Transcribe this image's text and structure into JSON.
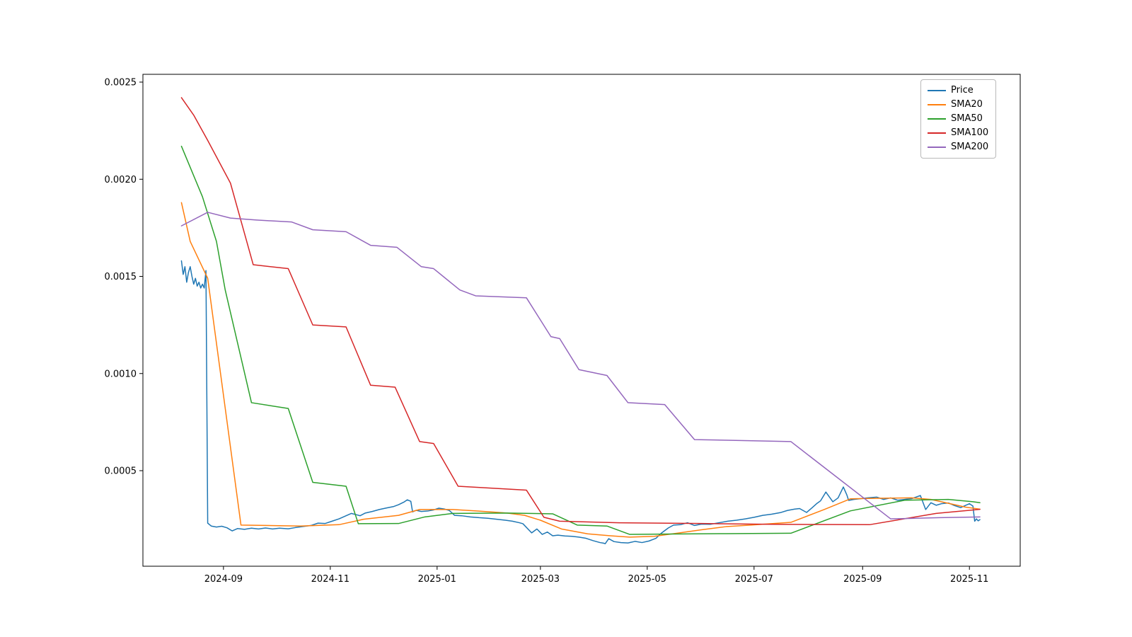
{
  "figure": {
    "background": "#ffffff",
    "spine_color": "#000000"
  },
  "chart_data": {
    "type": "line",
    "title": "",
    "xlabel": "",
    "ylabel": "",
    "grid": false,
    "legend_position": "upper right",
    "x_axis": {
      "kind": "date",
      "xlim": [
        "2024-07-17",
        "2025-11-30"
      ],
      "ticks": [
        {
          "date": "2024-09-01",
          "label": "2024-09"
        },
        {
          "date": "2024-11-01",
          "label": "2024-11"
        },
        {
          "date": "2025-01-01",
          "label": "2025-01"
        },
        {
          "date": "2025-03-01",
          "label": "2025-03"
        },
        {
          "date": "2025-05-01",
          "label": "2025-05"
        },
        {
          "date": "2025-07-01",
          "label": "2025-07"
        },
        {
          "date": "2025-09-01",
          "label": "2025-09"
        },
        {
          "date": "2025-11-01",
          "label": "2025-11"
        }
      ]
    },
    "y_axis": {
      "ylim": [
        8.2e-06,
        0.0025401
      ],
      "ticks": [
        {
          "value": 0.0005,
          "label": "0.0005"
        },
        {
          "value": 0.001,
          "label": "0.0010"
        },
        {
          "value": 0.0015,
          "label": "0.0015"
        },
        {
          "value": 0.002,
          "label": "0.0020"
        },
        {
          "value": 0.0025,
          "label": "0.0025"
        }
      ]
    },
    "series": [
      {
        "name": "Price",
        "color": "#1f77b4",
        "points": [
          [
            "2024-08-08",
            0.00158
          ],
          [
            "2024-08-09",
            0.00151
          ],
          [
            "2024-08-10",
            0.00155
          ],
          [
            "2024-08-11",
            0.00147
          ],
          [
            "2024-08-12",
            0.00152
          ],
          [
            "2024-08-13",
            0.00155
          ],
          [
            "2024-08-14",
            0.0015
          ],
          [
            "2024-08-15",
            0.00146
          ],
          [
            "2024-08-16",
            0.00149
          ],
          [
            "2024-08-17",
            0.00145
          ],
          [
            "2024-08-18",
            0.00147
          ],
          [
            "2024-08-19",
            0.00144
          ],
          [
            "2024-08-20",
            0.00146
          ],
          [
            "2024-08-21",
            0.00144
          ],
          [
            "2024-08-22",
            0.00153
          ],
          [
            "2024-08-23",
            0.00023
          ],
          [
            "2024-08-25",
            0.000215
          ],
          [
            "2024-08-28",
            0.00021
          ],
          [
            "2024-08-31",
            0.000214
          ],
          [
            "2024-09-03",
            0.000206
          ],
          [
            "2024-09-06",
            0.00019
          ],
          [
            "2024-09-09",
            0.000202
          ],
          [
            "2024-09-13",
            0.000198
          ],
          [
            "2024-09-17",
            0.000204
          ],
          [
            "2024-09-21",
            0.0002
          ],
          [
            "2024-09-25",
            0.000205
          ],
          [
            "2024-09-29",
            0.0002
          ],
          [
            "2024-10-03",
            0.000204
          ],
          [
            "2024-10-08",
            0.000201
          ],
          [
            "2024-10-12",
            0.000207
          ],
          [
            "2024-10-16",
            0.000212
          ],
          [
            "2024-10-21",
            0.000218
          ],
          [
            "2024-10-25",
            0.00023
          ],
          [
            "2024-10-29",
            0.000228
          ],
          [
            "2024-11-02",
            0.00024
          ],
          [
            "2024-11-06",
            0.000252
          ],
          [
            "2024-11-10",
            0.000268
          ],
          [
            "2024-11-13",
            0.00028
          ],
          [
            "2024-11-16",
            0.000273
          ],
          [
            "2024-11-18",
            0.000268
          ],
          [
            "2024-11-21",
            0.000282
          ],
          [
            "2024-11-25",
            0.00029
          ],
          [
            "2024-11-29",
            0.0003
          ],
          [
            "2024-12-03",
            0.000308
          ],
          [
            "2024-12-07",
            0.000315
          ],
          [
            "2024-12-10",
            0.000325
          ],
          [
            "2024-12-13",
            0.000338
          ],
          [
            "2024-12-15",
            0.00035
          ],
          [
            "2024-12-17",
            0.000342
          ],
          [
            "2024-12-18",
            0.000288
          ],
          [
            "2024-12-20",
            0.000296
          ],
          [
            "2024-12-23",
            0.00029
          ],
          [
            "2024-12-27",
            0.000293
          ],
          [
            "2024-12-30",
            0.000298
          ],
          [
            "2025-01-02",
            0.000307
          ],
          [
            "2025-01-05",
            0.000303
          ],
          [
            "2025-01-08",
            0.000295
          ],
          [
            "2025-01-11",
            0.00027
          ],
          [
            "2025-01-15",
            0.000268
          ],
          [
            "2025-01-20",
            0.000262
          ],
          [
            "2025-01-25",
            0.000258
          ],
          [
            "2025-01-30",
            0.000255
          ],
          [
            "2025-02-04",
            0.00025
          ],
          [
            "2025-02-09",
            0.000245
          ],
          [
            "2025-02-13",
            0.00024
          ],
          [
            "2025-02-17",
            0.000232
          ],
          [
            "2025-02-19",
            0.000227
          ],
          [
            "2025-02-24",
            0.00018
          ],
          [
            "2025-02-27",
            0.0002
          ],
          [
            "2025-03-02",
            0.000172
          ],
          [
            "2025-03-05",
            0.000184
          ],
          [
            "2025-03-08",
            0.000165
          ],
          [
            "2025-03-11",
            0.000168
          ],
          [
            "2025-03-15",
            0.000164
          ],
          [
            "2025-03-19",
            0.000162
          ],
          [
            "2025-03-23",
            0.000158
          ],
          [
            "2025-03-27",
            0.000152
          ],
          [
            "2025-03-31",
            0.00014
          ],
          [
            "2025-04-04",
            0.00013
          ],
          [
            "2025-04-06",
            0.000127
          ],
          [
            "2025-04-07",
            0.000124
          ],
          [
            "2025-04-09",
            0.00015
          ],
          [
            "2025-04-12",
            0.000135
          ],
          [
            "2025-04-16",
            0.00013
          ],
          [
            "2025-04-20",
            0.000128
          ],
          [
            "2025-04-24",
            0.000136
          ],
          [
            "2025-04-28",
            0.00013
          ],
          [
            "2025-05-02",
            0.000138
          ],
          [
            "2025-05-06",
            0.000152
          ],
          [
            "2025-05-09",
            0.000178
          ],
          [
            "2025-05-13",
            0.000205
          ],
          [
            "2025-05-16",
            0.00022
          ],
          [
            "2025-05-20",
            0.000222
          ],
          [
            "2025-05-24",
            0.000232
          ],
          [
            "2025-05-28",
            0.000218
          ],
          [
            "2025-06-01",
            0.000225
          ],
          [
            "2025-06-06",
            0.000224
          ],
          [
            "2025-06-11",
            0.000232
          ],
          [
            "2025-06-16",
            0.00024
          ],
          [
            "2025-06-21",
            0.000245
          ],
          [
            "2025-06-26",
            0.000252
          ],
          [
            "2025-07-01",
            0.00026
          ],
          [
            "2025-07-06",
            0.00027
          ],
          [
            "2025-07-11",
            0.000276
          ],
          [
            "2025-07-16",
            0.000284
          ],
          [
            "2025-07-20",
            0.000295
          ],
          [
            "2025-07-24",
            0.000302
          ],
          [
            "2025-07-27",
            0.000305
          ],
          [
            "2025-07-31",
            0.000285
          ],
          [
            "2025-08-03",
            0.000308
          ],
          [
            "2025-08-06",
            0.000332
          ],
          [
            "2025-08-08",
            0.000345
          ],
          [
            "2025-08-11",
            0.00039
          ],
          [
            "2025-08-13",
            0.000365
          ],
          [
            "2025-08-15",
            0.00034
          ],
          [
            "2025-08-18",
            0.00036
          ],
          [
            "2025-08-21",
            0.000416
          ],
          [
            "2025-08-23",
            0.000375
          ],
          [
            "2025-08-24",
            0.000347
          ],
          [
            "2025-08-27",
            0.000352
          ],
          [
            "2025-08-31",
            0.000356
          ],
          [
            "2025-09-04",
            0.00036
          ],
          [
            "2025-09-09",
            0.000364
          ],
          [
            "2025-09-13",
            0.000352
          ],
          [
            "2025-09-17",
            0.00036
          ],
          [
            "2025-09-21",
            0.000348
          ],
          [
            "2025-09-25",
            0.000352
          ],
          [
            "2025-09-29",
            0.000356
          ],
          [
            "2025-10-04",
            0.000372
          ],
          [
            "2025-10-07",
            0.0003
          ],
          [
            "2025-10-10",
            0.000335
          ],
          [
            "2025-10-13",
            0.000322
          ],
          [
            "2025-10-16",
            0.00033
          ],
          [
            "2025-10-20",
            0.000334
          ],
          [
            "2025-10-23",
            0.000322
          ],
          [
            "2025-10-27",
            0.00031
          ],
          [
            "2025-10-30",
            0.000322
          ],
          [
            "2025-11-01",
            0.00033
          ],
          [
            "2025-11-03",
            0.000318
          ],
          [
            "2025-11-04",
            0.00024
          ],
          [
            "2025-11-05",
            0.000252
          ],
          [
            "2025-11-06",
            0.000242
          ],
          [
            "2025-11-07",
            0.000248
          ]
        ]
      },
      {
        "name": "SMA20",
        "color": "#ff7f0e",
        "points": [
          [
            "2024-08-08",
            0.00188
          ],
          [
            "2024-08-13",
            0.00168
          ],
          [
            "2024-08-23",
            0.00149
          ],
          [
            "2024-09-11",
            0.00022
          ],
          [
            "2024-09-25",
            0.000218
          ],
          [
            "2024-10-15",
            0.000215
          ],
          [
            "2024-11-06",
            0.000222
          ],
          [
            "2024-11-20",
            0.00025
          ],
          [
            "2024-12-10",
            0.00027
          ],
          [
            "2024-12-22",
            0.0003
          ],
          [
            "2025-01-10",
            0.0003
          ],
          [
            "2025-01-25",
            0.000292
          ],
          [
            "2025-02-10",
            0.000282
          ],
          [
            "2025-02-20",
            0.00027
          ],
          [
            "2025-03-01",
            0.000245
          ],
          [
            "2025-03-13",
            0.0002
          ],
          [
            "2025-03-28",
            0.000175
          ],
          [
            "2025-04-10",
            0.000165
          ],
          [
            "2025-04-21",
            0.000158
          ],
          [
            "2025-05-05",
            0.000162
          ],
          [
            "2025-05-18",
            0.000178
          ],
          [
            "2025-06-01",
            0.000196
          ],
          [
            "2025-06-15",
            0.000212
          ],
          [
            "2025-06-29",
            0.00022
          ],
          [
            "2025-07-22",
            0.000234
          ],
          [
            "2025-08-10",
            0.0003
          ],
          [
            "2025-08-25",
            0.000355
          ],
          [
            "2025-09-10",
            0.000358
          ],
          [
            "2025-09-29",
            0.00036
          ],
          [
            "2025-10-10",
            0.000352
          ],
          [
            "2025-10-20",
            0.000332
          ],
          [
            "2025-10-30",
            0.000312
          ],
          [
            "2025-11-07",
            0.000302
          ]
        ]
      },
      {
        "name": "SMA50",
        "color": "#2ca02c",
        "points": [
          [
            "2024-08-08",
            0.00217
          ],
          [
            "2024-08-20",
            0.00191
          ],
          [
            "2024-08-28",
            0.00168
          ],
          [
            "2024-09-02",
            0.00143
          ],
          [
            "2024-09-17",
            0.00085
          ],
          [
            "2024-10-08",
            0.00082
          ],
          [
            "2024-10-22",
            0.00044
          ],
          [
            "2024-11-10",
            0.00042
          ],
          [
            "2024-11-17",
            0.000227
          ],
          [
            "2024-12-10",
            0.000228
          ],
          [
            "2024-12-25",
            0.000262
          ],
          [
            "2025-01-10",
            0.00028
          ],
          [
            "2025-02-10",
            0.000282
          ],
          [
            "2025-03-08",
            0.000278
          ],
          [
            "2025-03-22",
            0.00022
          ],
          [
            "2025-04-08",
            0.000215
          ],
          [
            "2025-04-21",
            0.000172
          ],
          [
            "2025-05-15",
            0.000174
          ],
          [
            "2025-06-15",
            0.000176
          ],
          [
            "2025-07-22",
            0.000178
          ],
          [
            "2025-08-25",
            0.000293
          ],
          [
            "2025-09-25",
            0.000348
          ],
          [
            "2025-10-20",
            0.000352
          ],
          [
            "2025-11-03",
            0.00034
          ],
          [
            "2025-11-07",
            0.000335
          ]
        ]
      },
      {
        "name": "SMA100",
        "color": "#d62728",
        "points": [
          [
            "2024-08-08",
            0.00242
          ],
          [
            "2024-08-15",
            0.00233
          ],
          [
            "2024-08-23",
            0.0022
          ],
          [
            "2024-09-05",
            0.00198
          ],
          [
            "2024-09-18",
            0.00156
          ],
          [
            "2024-10-08",
            0.00154
          ],
          [
            "2024-10-22",
            0.00125
          ],
          [
            "2024-11-10",
            0.00124
          ],
          [
            "2024-11-24",
            0.00094
          ],
          [
            "2024-12-08",
            0.00093
          ],
          [
            "2024-12-22",
            0.00065
          ],
          [
            "2024-12-30",
            0.00064
          ],
          [
            "2025-01-13",
            0.00042
          ],
          [
            "2025-02-21",
            0.0004
          ],
          [
            "2025-03-03",
            0.00026
          ],
          [
            "2025-03-12",
            0.00024
          ],
          [
            "2025-04-15",
            0.000232
          ],
          [
            "2025-06-01",
            0.000228
          ],
          [
            "2025-07-11",
            0.000224
          ],
          [
            "2025-09-05",
            0.000222
          ],
          [
            "2025-10-13",
            0.00028
          ],
          [
            "2025-11-07",
            0.000301
          ]
        ]
      },
      {
        "name": "SMA200",
        "color": "#9467bd",
        "points": [
          [
            "2024-08-08",
            0.00176
          ],
          [
            "2024-08-23",
            0.00183
          ],
          [
            "2024-09-05",
            0.0018
          ],
          [
            "2024-09-20",
            0.00179
          ],
          [
            "2024-10-10",
            0.00178
          ],
          [
            "2024-10-22",
            0.00174
          ],
          [
            "2024-11-10",
            0.00173
          ],
          [
            "2024-11-24",
            0.00166
          ],
          [
            "2024-12-09",
            0.00165
          ],
          [
            "2024-12-23",
            0.00155
          ],
          [
            "2024-12-30",
            0.00154
          ],
          [
            "2025-01-14",
            0.00143
          ],
          [
            "2025-01-23",
            0.0014
          ],
          [
            "2025-02-21",
            0.00139
          ],
          [
            "2025-03-07",
            0.00119
          ],
          [
            "2025-03-12",
            0.00118
          ],
          [
            "2025-03-23",
            0.00102
          ],
          [
            "2025-04-08",
            0.00099
          ],
          [
            "2025-04-20",
            0.00085
          ],
          [
            "2025-05-11",
            0.00084
          ],
          [
            "2025-05-28",
            0.00066
          ],
          [
            "2025-07-22",
            0.00065
          ],
          [
            "2025-09-17",
            0.000252
          ],
          [
            "2025-10-15",
            0.000258
          ],
          [
            "2025-11-07",
            0.000262
          ]
        ]
      }
    ]
  }
}
